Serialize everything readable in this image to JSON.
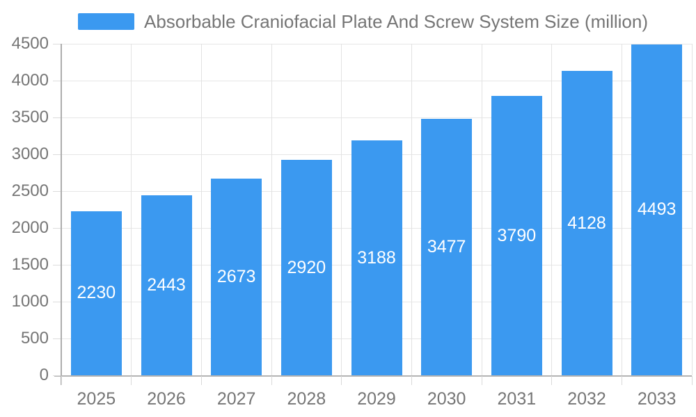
{
  "legend": {
    "label": "Absorbable Craniofacial Plate And Screw System Size (million)",
    "swatch_color": "#3B99F0"
  },
  "chart_data": {
    "type": "bar",
    "title": "Absorbable Craniofacial Plate And Screw System Size (million)",
    "categories": [
      "2025",
      "2026",
      "2027",
      "2028",
      "2029",
      "2030",
      "2031",
      "2032",
      "2033"
    ],
    "series": [
      {
        "name": "Absorbable Craniofacial Plate And Screw System Size (million)",
        "values": [
          2230,
          2443,
          2673,
          2920,
          3188,
          3477,
          3790,
          4128,
          4493
        ]
      }
    ],
    "value_labels": [
      "2230",
      "2443",
      "2673",
      "2920",
      "3188",
      "3477",
      "3790",
      "4128",
      "4493"
    ],
    "xlabel": "",
    "ylabel": "",
    "ylim": [
      0,
      4500
    ],
    "ytick_step": 500,
    "ytick_labels": [
      "0",
      "500",
      "1000",
      "1500",
      "2000",
      "2500",
      "3000",
      "3500",
      "4000",
      "4500"
    ],
    "grid": "on",
    "legend_position": "top",
    "bar_color": "#3B99F0",
    "value_label_color": "#FFFFFF",
    "axis_text_color": "#757575"
  },
  "colors": {
    "bar": "#3B99F0",
    "axis_line": "#ADADAD",
    "gridline": "#E6E6E6",
    "tick": "#DCDCDC",
    "text": "#757575",
    "background": "#FFFFFF"
  }
}
